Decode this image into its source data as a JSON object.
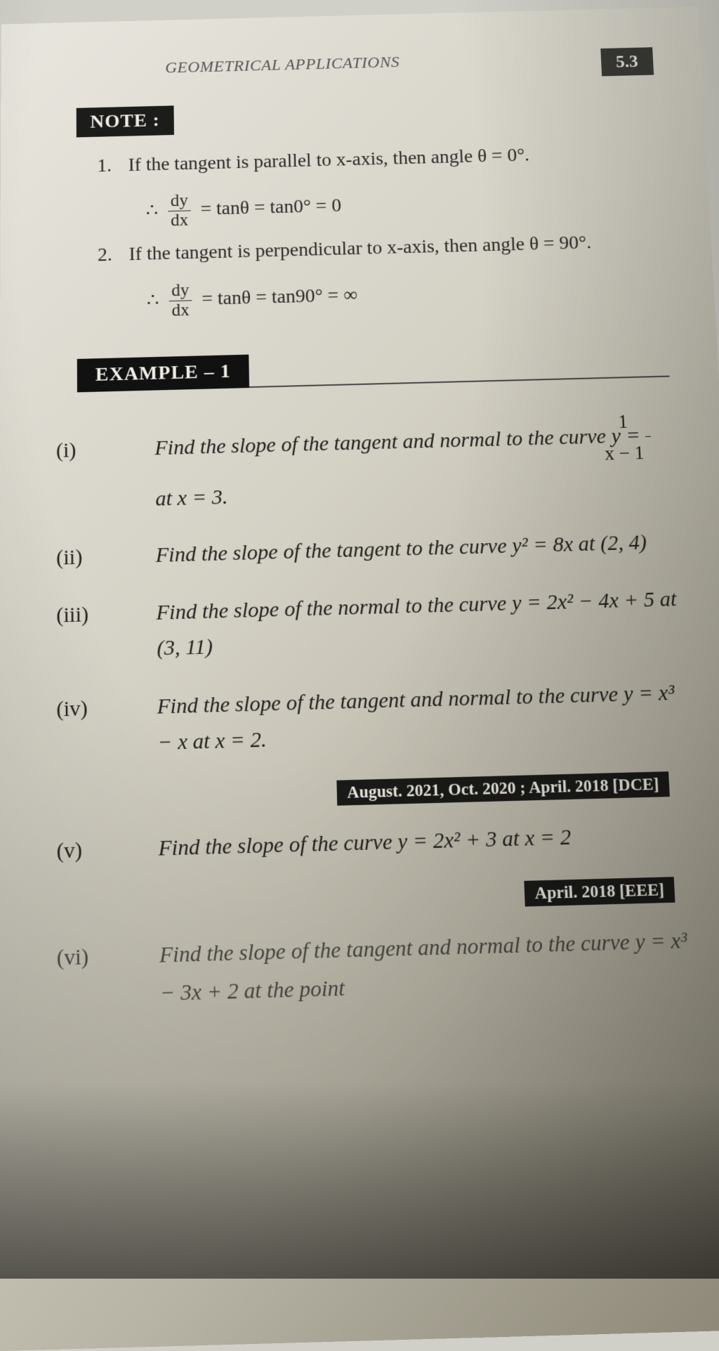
{
  "header": {
    "chapter_title": "GEOMETRICAL APPLICATIONS",
    "page_number": "5.3"
  },
  "note": {
    "badge": "NOTE :",
    "items": [
      {
        "num": "1.",
        "text_a": "If the tangent is parallel to x-axis, then angle θ = 0°.",
        "formula": "∴  dy/dx = tanθ = tan0° = 0"
      },
      {
        "num": "2.",
        "text_a": "If the tangent is perpendicular to x-axis, then angle θ = 90°.",
        "formula": "∴  dy/dx = tanθ = tan90° = ∞"
      }
    ]
  },
  "example": {
    "badge": "EXAMPLE – 1"
  },
  "questions": [
    {
      "roman": "(i)",
      "text": "Find the slope of the tangent and normal to the curve y = 1/(x − 1) at x = 3."
    },
    {
      "roman": "(ii)",
      "text": "Find the slope of the tangent to the curve y² = 8x at (2, 4)"
    },
    {
      "roman": "(iii)",
      "text": "Find the slope of the normal to the curve y = 2x² − 4x + 5 at (3, 11)"
    },
    {
      "roman": "(iv)",
      "text": "Find the slope of the tangent and normal to the curve y = x³ − x at x = 2.",
      "tag": "August. 2021, Oct. 2020 ; April. 2018 [DCE]"
    },
    {
      "roman": "(v)",
      "text": "Find the slope of the curve y = 2x² + 3 at x = 2",
      "tag": "April. 2018 [EEE]"
    },
    {
      "roman": "(vi)",
      "text": "Find the slope of the tangent and normal to the curve y = x³ − 3x + 2 at the point"
    }
  ],
  "frac": {
    "dy": "dy",
    "dx": "dx",
    "one": "1",
    "xm1": "x − 1"
  }
}
